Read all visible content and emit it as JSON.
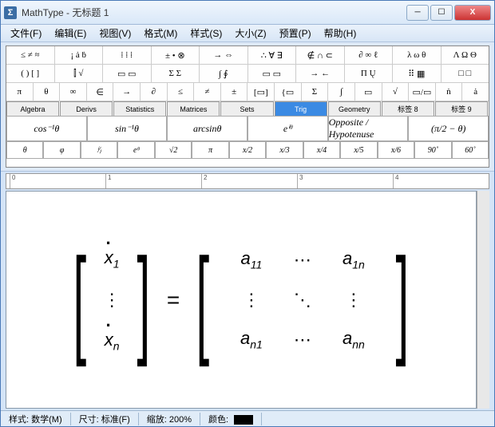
{
  "window": {
    "icon": "Σ",
    "title": "MathType - 无标题 1"
  },
  "win_btns": {
    "min": "─",
    "max": "☐",
    "close": "X"
  },
  "menus": [
    {
      "label": "文件(F)"
    },
    {
      "label": "编辑(E)"
    },
    {
      "label": "视图(V)"
    },
    {
      "label": "格式(M)"
    },
    {
      "label": "样式(S)"
    },
    {
      "label": "大小(Z)"
    },
    {
      "label": "预置(P)"
    },
    {
      "label": "帮助(H)"
    }
  ],
  "sym_rows": [
    [
      "≤ ≠ ≈",
      "¡ ȧ ḃ",
      "⁞ ⁞ ⁞",
      "± • ⊗",
      "→ ⇔",
      "∴ ∀ ∃",
      "∉ ∩ ⊂",
      "∂ ∞ ℓ",
      "λ ω θ",
      "Λ Ω Θ"
    ],
    [
      "( ) [ ]",
      "⫿ √",
      "▭ ▭",
      "Σ Σ",
      "∫ ∮",
      "▭ ▭",
      "→ ←",
      "Π Ų",
      "⠿ ▦",
      "□ □"
    ]
  ],
  "sym_row3": [
    "π",
    "θ",
    "∞",
    "∈",
    "→",
    "∂",
    "≤",
    "≠",
    "±",
    "[▭]",
    "{▭",
    "Σ",
    "∫",
    "▭",
    "√",
    "▭/▭",
    "ṅ",
    "ȧ"
  ],
  "tabs": [
    {
      "label": "Algebra"
    },
    {
      "label": "Derivs"
    },
    {
      "label": "Statistics"
    },
    {
      "label": "Matrices"
    },
    {
      "label": "Sets"
    },
    {
      "label": "Trig",
      "active": true
    },
    {
      "label": "Geometry"
    },
    {
      "label": "标签 8"
    },
    {
      "label": "标签 9"
    }
  ],
  "fn_row": [
    "cos⁻¹θ",
    "sin⁻¹θ",
    "arcsinθ",
    "eⁱᶿ",
    "Opposite / Hypotenuse",
    "(π/2 − θ)"
  ],
  "fn_row2": [
    "θ",
    "φ",
    "ⁱ⁄ⱼ",
    "eᶿ",
    "√2",
    "π",
    "x/2",
    "x/3",
    "x/4",
    "x/5",
    "x/6",
    "90˚",
    "60˚"
  ],
  "ruler_marks": [
    "0",
    "1",
    "2",
    "3",
    "4"
  ],
  "equation": {
    "vec": [
      "x",
      "⋮",
      "x"
    ],
    "vec_sub": [
      "1",
      "",
      "n"
    ],
    "eq": "=",
    "matrix": [
      [
        "a",
        "⋯",
        "a"
      ],
      [
        "⋮",
        "⋱",
        "⋮"
      ],
      [
        "a",
        "⋯",
        "a"
      ]
    ],
    "matrix_sub": [
      [
        "11",
        "",
        "1n"
      ],
      [
        "",
        "",
        ""
      ],
      [
        "n1",
        "",
        "nn"
      ]
    ]
  },
  "status": {
    "style": "样式: 数学(M)",
    "size": "尺寸: 标准(F)",
    "zoom": "缩放: 200%",
    "color_label": "颜色:"
  }
}
